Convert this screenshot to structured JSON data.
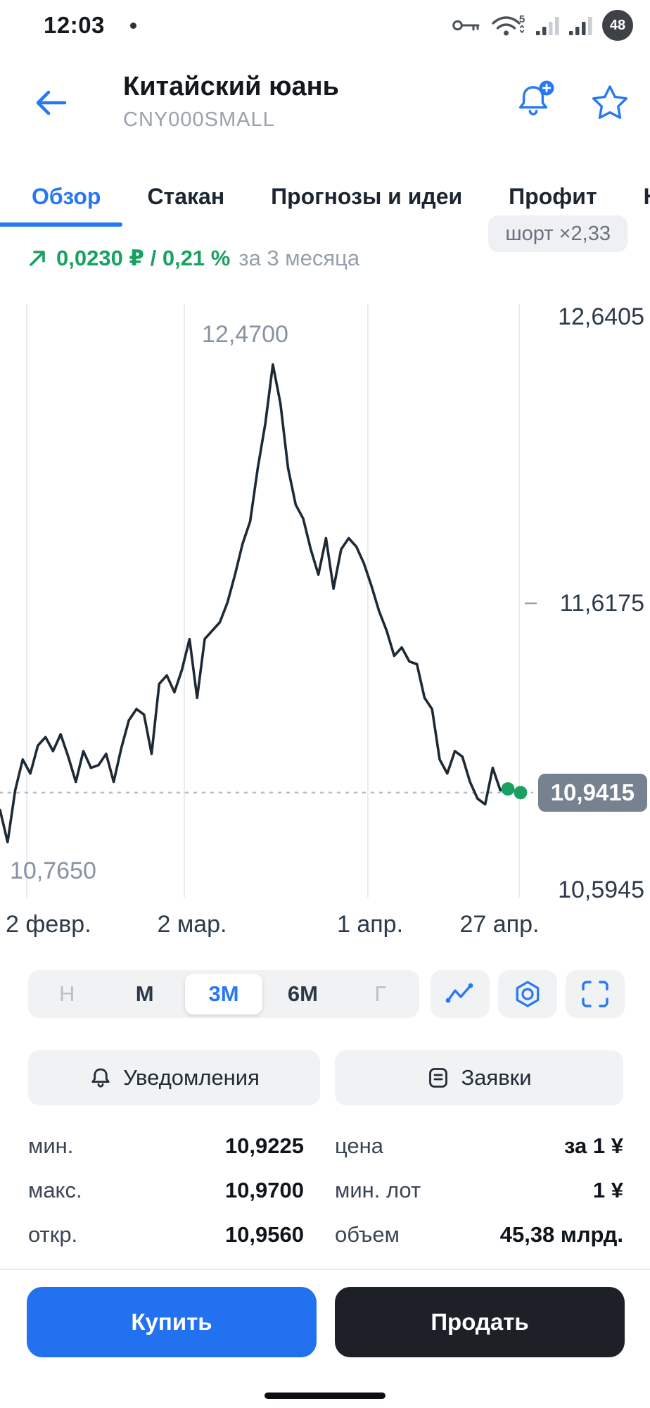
{
  "colors": {
    "accent_blue": "#2679f2",
    "positive_green": "#18a161",
    "chart_line": "#1d2935",
    "badge_gray": "#76828f",
    "sell_black": "#1d2127"
  },
  "status_bar": {
    "time": "12:03",
    "wifi_badge": "5",
    "battery_percent": "48"
  },
  "header": {
    "title": "Китайский юань",
    "subtitle": "CNY000SMALL"
  },
  "tabs": [
    {
      "label": "Обзор",
      "active": true
    },
    {
      "label": "Стакан",
      "active": false
    },
    {
      "label": "Прогнозы и идеи",
      "active": false
    },
    {
      "label": "Профит",
      "active": false
    },
    {
      "label": "Но",
      "active": false
    }
  ],
  "short_badge_label": "шорт ×2,33",
  "change_row": {
    "value": "0,0230 ₽ / 0,21 %",
    "period": "за 3 месяца"
  },
  "chart_data": {
    "type": "line",
    "title": "",
    "x_labels": [
      "2 февр.",
      "2 мар.",
      "1 апр.",
      "27 апр."
    ],
    "y_tick_labels": [
      "12,6405",
      "11,6175",
      "10,5945"
    ],
    "y_range": [
      10.5945,
      12.6405
    ],
    "peak_annotation": "12,4700",
    "min_annotation": "10,7650",
    "current_price_label": "10,9415",
    "current_value": 10.9415,
    "line_color": "#1d2935",
    "marker_color": "#18a161",
    "grid": "vertical-only",
    "values": [
      10.88,
      10.765,
      10.95,
      11.06,
      11.01,
      11.11,
      11.14,
      11.09,
      11.15,
      11.07,
      10.98,
      11.09,
      11.03,
      11.04,
      11.08,
      10.98,
      11.1,
      11.2,
      11.24,
      11.22,
      11.08,
      11.33,
      11.36,
      11.3,
      11.38,
      11.49,
      11.28,
      11.49,
      11.52,
      11.55,
      11.62,
      11.72,
      11.83,
      11.91,
      12.1,
      12.26,
      12.47,
      12.33,
      12.1,
      11.97,
      11.92,
      11.81,
      11.72,
      11.85,
      11.67,
      11.81,
      11.85,
      11.82,
      11.76,
      11.68,
      11.59,
      11.52,
      11.43,
      11.46,
      11.41,
      11.4,
      11.28,
      11.24,
      11.06,
      11.01,
      11.09,
      11.07,
      10.98,
      10.92,
      10.9,
      11.03,
      10.95,
      10.955
    ]
  },
  "period_selector": {
    "options": [
      {
        "label": "Н",
        "state": "dim"
      },
      {
        "label": "М",
        "state": "normal"
      },
      {
        "label": "3М",
        "state": "selected"
      },
      {
        "label": "6М",
        "state": "normal"
      },
      {
        "label": "Г",
        "state": "dim"
      }
    ]
  },
  "quick_actions": {
    "notifications_label": "Уведомления",
    "orders_label": "Заявки"
  },
  "stats": {
    "left": [
      {
        "label": "мин.",
        "value": "10,9225"
      },
      {
        "label": "макс.",
        "value": "10,9700"
      },
      {
        "label": "откр.",
        "value": "10,9560"
      }
    ],
    "right": [
      {
        "label": "цена",
        "value": "за 1 ¥"
      },
      {
        "label": "мин. лот",
        "value": "1 ¥"
      },
      {
        "label": "объем",
        "value": "45,38 млрд."
      }
    ]
  },
  "cta": {
    "buy_label": "Купить",
    "sell_label": "Продать"
  }
}
